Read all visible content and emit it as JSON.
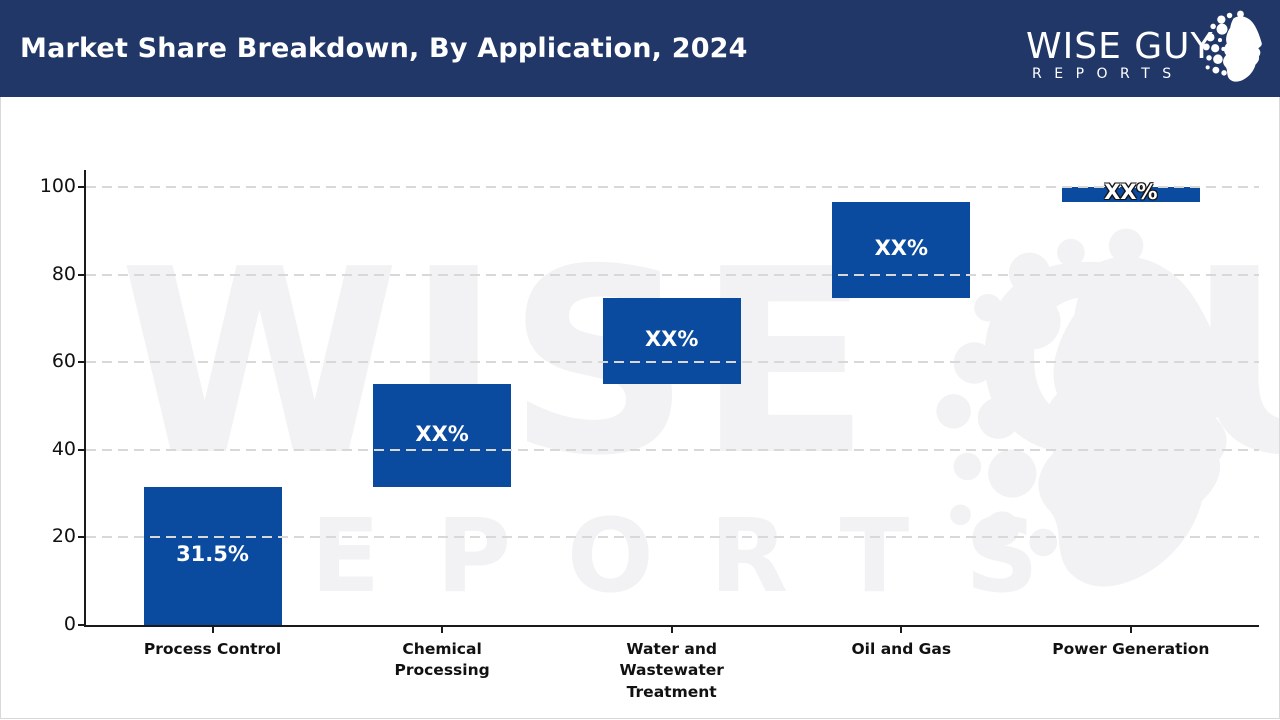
{
  "header": {
    "title": "Market Share Breakdown, By Application, 2024",
    "logo": {
      "name": "WISE GUY",
      "tagline": "REPORTS"
    }
  },
  "watermark": {
    "line1": "WISE GUY",
    "line2": "REPORTS"
  },
  "chart_data": {
    "type": "bar",
    "variant": "waterfall",
    "title": "Market Share Breakdown, By Application, 2024",
    "categories": [
      "Process Control",
      "Chemical Processing",
      "Water and Wastewater Treatment",
      "Oil and Gas",
      "Power Generation"
    ],
    "bars": [
      {
        "category": "Process Control",
        "category_lines": [
          "Process Control"
        ],
        "start": 0,
        "end": 31.5,
        "label": "31.5%"
      },
      {
        "category": "Chemical Processing",
        "category_lines": [
          "Chemical",
          "Processing"
        ],
        "start": 31.5,
        "end": 55.0,
        "label": "XX%"
      },
      {
        "category": "Water and Wastewater Treatment",
        "category_lines": [
          "Water and",
          "Wastewater",
          "Treatment"
        ],
        "start": 55.0,
        "end": 74.7,
        "label": "XX%"
      },
      {
        "category": "Oil and Gas",
        "category_lines": [
          "Oil and Gas"
        ],
        "start": 74.7,
        "end": 96.6,
        "label": "XX%"
      },
      {
        "category": "Power Generation",
        "category_lines": [
          "Power Generation"
        ],
        "start": 96.6,
        "end": 100.0,
        "label": "XX%"
      }
    ],
    "ylim": [
      0,
      100
    ],
    "yticks": [
      0,
      20,
      40,
      60,
      80,
      100
    ],
    "grid": {
      "horizontal": true,
      "style": "dashed",
      "drawn_over_bars": true
    },
    "legend": null,
    "colors": {
      "bar": "#0a4a9f",
      "header_bg": "#213768",
      "grid": "#d8d8d8",
      "axis": "#1a1a1a",
      "bar_label_text": "#ffffff",
      "watermark": "#f2f2f4"
    }
  }
}
